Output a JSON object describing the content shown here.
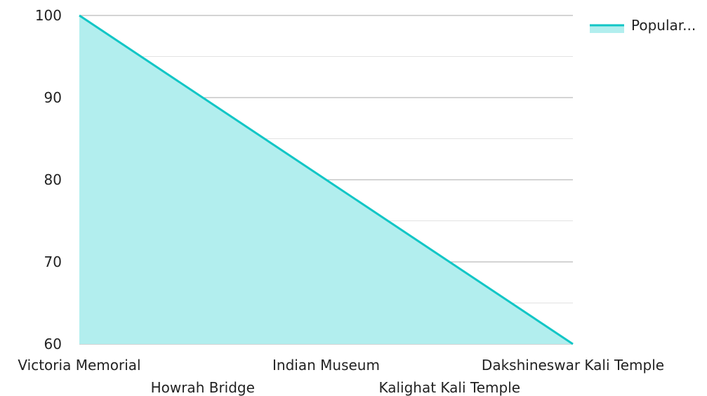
{
  "chart_data": {
    "type": "area",
    "categories": [
      "Victoria Memorial",
      "Howrah Bridge",
      "Indian Museum",
      "Kalighat Kali Temple",
      "Dakshineswar Kali Temple"
    ],
    "series": [
      {
        "name": "Popular...",
        "values": [
          100,
          90,
          80,
          70,
          60
        ]
      }
    ],
    "title": "",
    "xlabel": "",
    "ylabel": "",
    "ylim": [
      60,
      100
    ],
    "yticks": [
      60,
      70,
      80,
      90,
      100
    ],
    "grid": true,
    "legend_position": "top-right",
    "colors": {
      "line": "#12c6c6",
      "fill": "#b2eeee",
      "major_grid": "#aaaaaa",
      "minor_grid": "#e2e2e2",
      "text": "#222222"
    }
  }
}
